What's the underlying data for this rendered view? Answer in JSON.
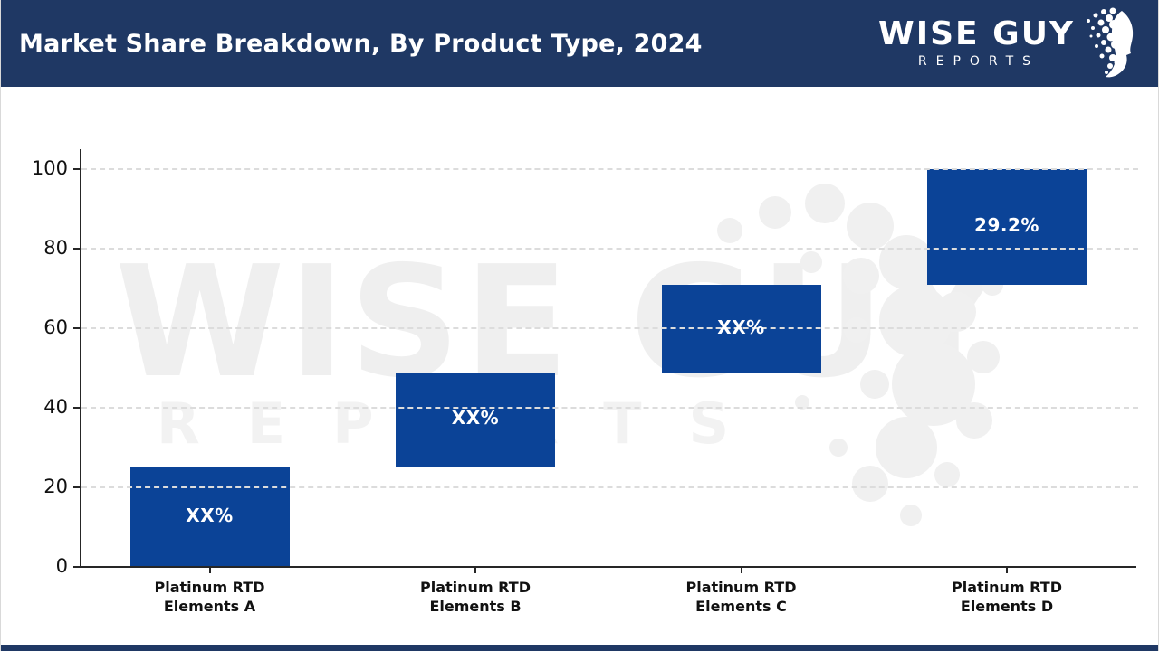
{
  "header": {
    "title": "Market Share Breakdown, By Product Type, 2024",
    "logo": {
      "line1": "WISE GUY",
      "line2": "REPORTS"
    }
  },
  "watermark": {
    "line1": "WISE GUY",
    "line2": "REPORTS"
  },
  "colors": {
    "header_bg": "#1f3864",
    "bar": "#0b4397",
    "gridline": "#dcdcdc",
    "axis": "#262626",
    "watermark": "#efefef"
  },
  "chart_data": {
    "type": "bar",
    "subtype": "floating-waterfall",
    "title": "Market Share Breakdown, By Product Type, 2024",
    "categories": [
      "Platinum RTD\nElements A",
      "Platinum RTD\nElements B",
      "Platinum RTD\nElements C",
      "Platinum RTD\nElements D"
    ],
    "bars": [
      {
        "category": "Platinum RTD Elements A",
        "start": 0,
        "end": 25.2,
        "label": "XX%"
      },
      {
        "category": "Platinum RTD Elements B",
        "start": 25.2,
        "end": 48.9,
        "label": "XX%"
      },
      {
        "category": "Platinum RTD Elements C",
        "start": 48.9,
        "end": 70.8,
        "label": "XX%"
      },
      {
        "category": "Platinum RTD Elements D",
        "start": 70.8,
        "end": 100,
        "label": "29.2%"
      }
    ],
    "xlabel": "",
    "ylabel": "",
    "y_ticks": [
      0,
      20,
      40,
      60,
      80,
      100
    ],
    "ylim": [
      0,
      105
    ],
    "grid": "dashed-horizontal",
    "grid_above_bars": true,
    "legend": "none",
    "bar_color": "#0b4397"
  }
}
